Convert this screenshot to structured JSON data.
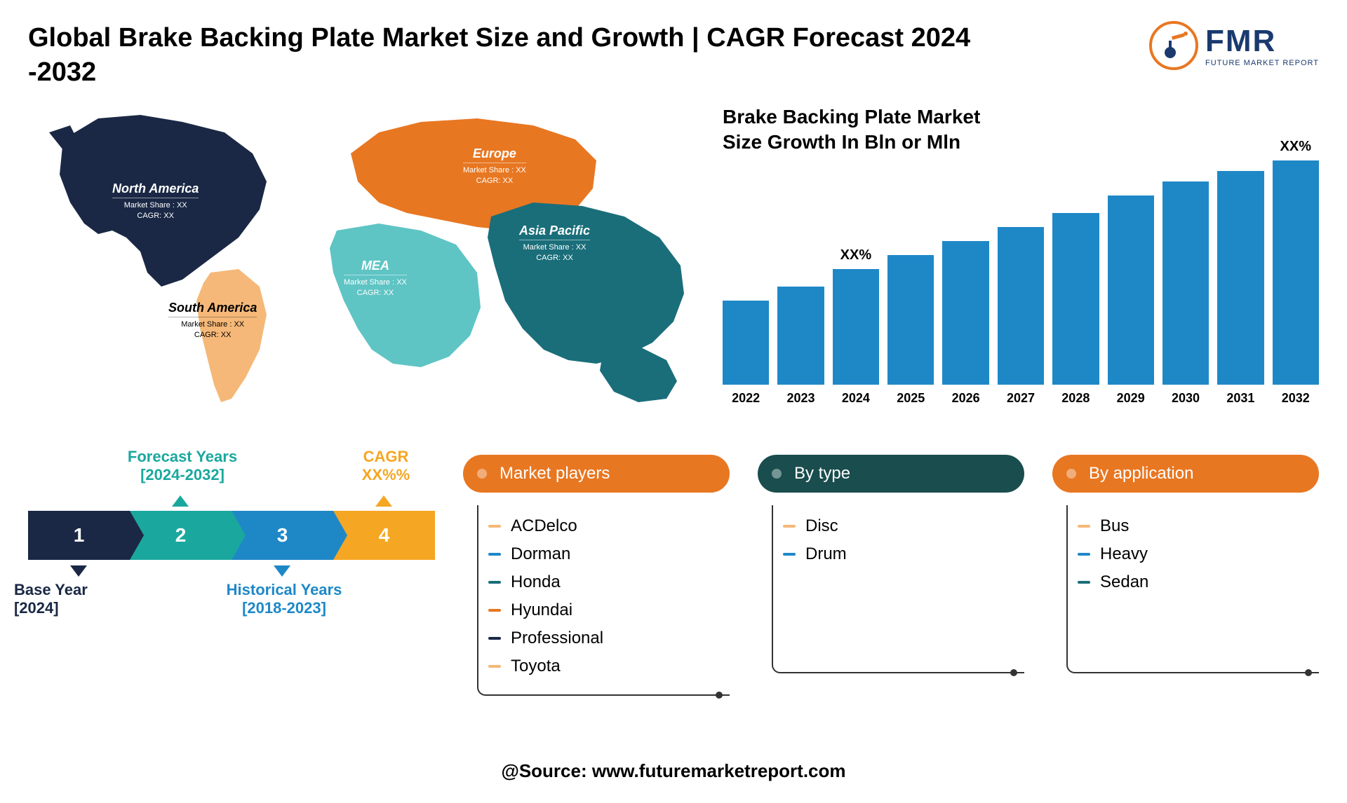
{
  "title": "Global Brake Backing Plate Market Size and Growth | CAGR Forecast 2024 -2032",
  "logo": {
    "fmr": "FMR",
    "sub": "FUTURE MARKET REPORT"
  },
  "regions": {
    "north_america": {
      "name": "North America",
      "share": "Market Share : XX",
      "cagr": "CAGR: XX",
      "color": "#1a2845"
    },
    "south_america": {
      "name": "South America",
      "share": "Market Share : XX",
      "cagr": "CAGR: XX",
      "color": "#f5b878"
    },
    "europe": {
      "name": "Europe",
      "share": "Market Share : XX",
      "cagr": "CAGR: XX",
      "color": "#e87722"
    },
    "mea": {
      "name": "MEA",
      "share": "Market Share : XX",
      "cagr": "CAGR: XX",
      "color": "#5fc4c4"
    },
    "asia_pacific": {
      "name": "Asia Pacific",
      "share": "Market Share : XX",
      "cagr": "CAGR: XX",
      "color": "#1a6e7a"
    }
  },
  "chart": {
    "title": "Brake Backing Plate Market Size Growth In Bln or Mln",
    "type": "bar",
    "years": [
      "2022",
      "2023",
      "2024",
      "2025",
      "2026",
      "2027",
      "2028",
      "2029",
      "2030",
      "2031",
      "2032"
    ],
    "values": [
      120,
      140,
      165,
      185,
      205,
      225,
      245,
      270,
      290,
      305,
      320
    ],
    "max": 320,
    "bar_color": "#1e88c7",
    "annotations": [
      {
        "index": 2,
        "text": "XX%"
      },
      {
        "index": 10,
        "text": "XX%"
      }
    ],
    "label_fontsize": 18,
    "title_fontsize": 28
  },
  "timeline": {
    "segments": [
      {
        "num": "1",
        "color": "#1a2845"
      },
      {
        "num": "2",
        "color": "#1aa89e"
      },
      {
        "num": "3",
        "color": "#1e88c7"
      },
      {
        "num": "4",
        "color": "#f5a623"
      }
    ],
    "labels": {
      "base": {
        "title": "Base Year",
        "range": "[2024]",
        "color": "#1a2845"
      },
      "forecast": {
        "title": "Forecast Years",
        "range": "[2024-2032]",
        "color": "#1aa89e"
      },
      "historical": {
        "title": "Historical Years",
        "range": "[2018-2023]",
        "color": "#1e88c7"
      },
      "cagr": {
        "title": "CAGR",
        "range": "XX%%",
        "color": "#f5a623"
      }
    }
  },
  "categories": {
    "players": {
      "title": "Market players",
      "header_color": "#e87722",
      "items": [
        "ACDelco",
        "Dorman",
        "Honda",
        "Hyundai",
        "Professional",
        "Toyota"
      ],
      "tick_colors": [
        "#f5b878",
        "#1e88c7",
        "#1a6e7a",
        "#e87722",
        "#1a2845",
        "#f5b878"
      ]
    },
    "type": {
      "title": "By type",
      "header_color": "#1a4d4d",
      "items": [
        "Disc",
        "Drum"
      ],
      "tick_colors": [
        "#f5b878",
        "#1e88c7"
      ]
    },
    "application": {
      "title": "By application",
      "header_color": "#e87722",
      "items": [
        "Bus",
        "Heavy",
        "Sedan"
      ],
      "tick_colors": [
        "#f5b878",
        "#1e88c7",
        "#1a6e7a"
      ]
    }
  },
  "source": "@Source: www.futuremarketreport.com"
}
